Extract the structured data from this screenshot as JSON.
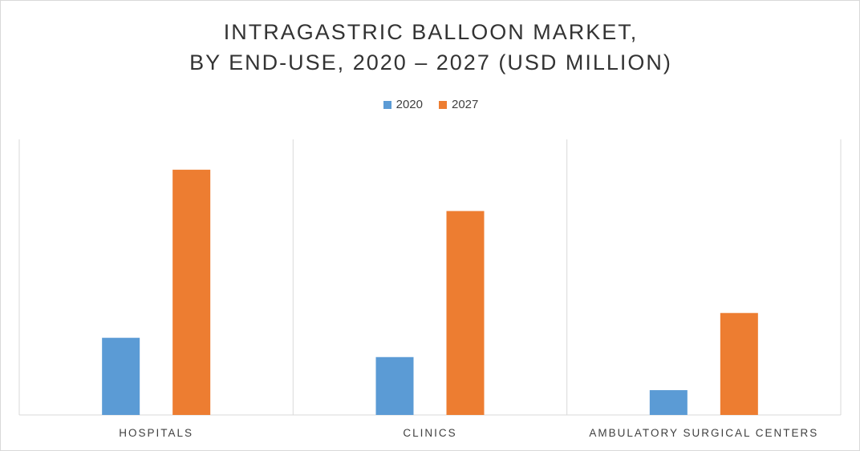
{
  "chart_data": {
    "type": "bar",
    "title_lines": [
      "INTRAGASTRIC BALLOON MARKET,",
      "BY END-USE, 2020 – 2027 (USD MILLION)"
    ],
    "categories": [
      "HOSPITALS",
      "CLINICS",
      "AMBULATORY SURGICAL CENTERS"
    ],
    "series": [
      {
        "name": "2020",
        "color": "#5b9bd5",
        "values": [
          28,
          21,
          9
        ]
      },
      {
        "name": "2027",
        "color": "#ed7d31",
        "values": [
          89,
          74,
          37
        ]
      }
    ],
    "ylim": [
      0,
      100
    ],
    "grid": false,
    "legend_position": "top"
  }
}
